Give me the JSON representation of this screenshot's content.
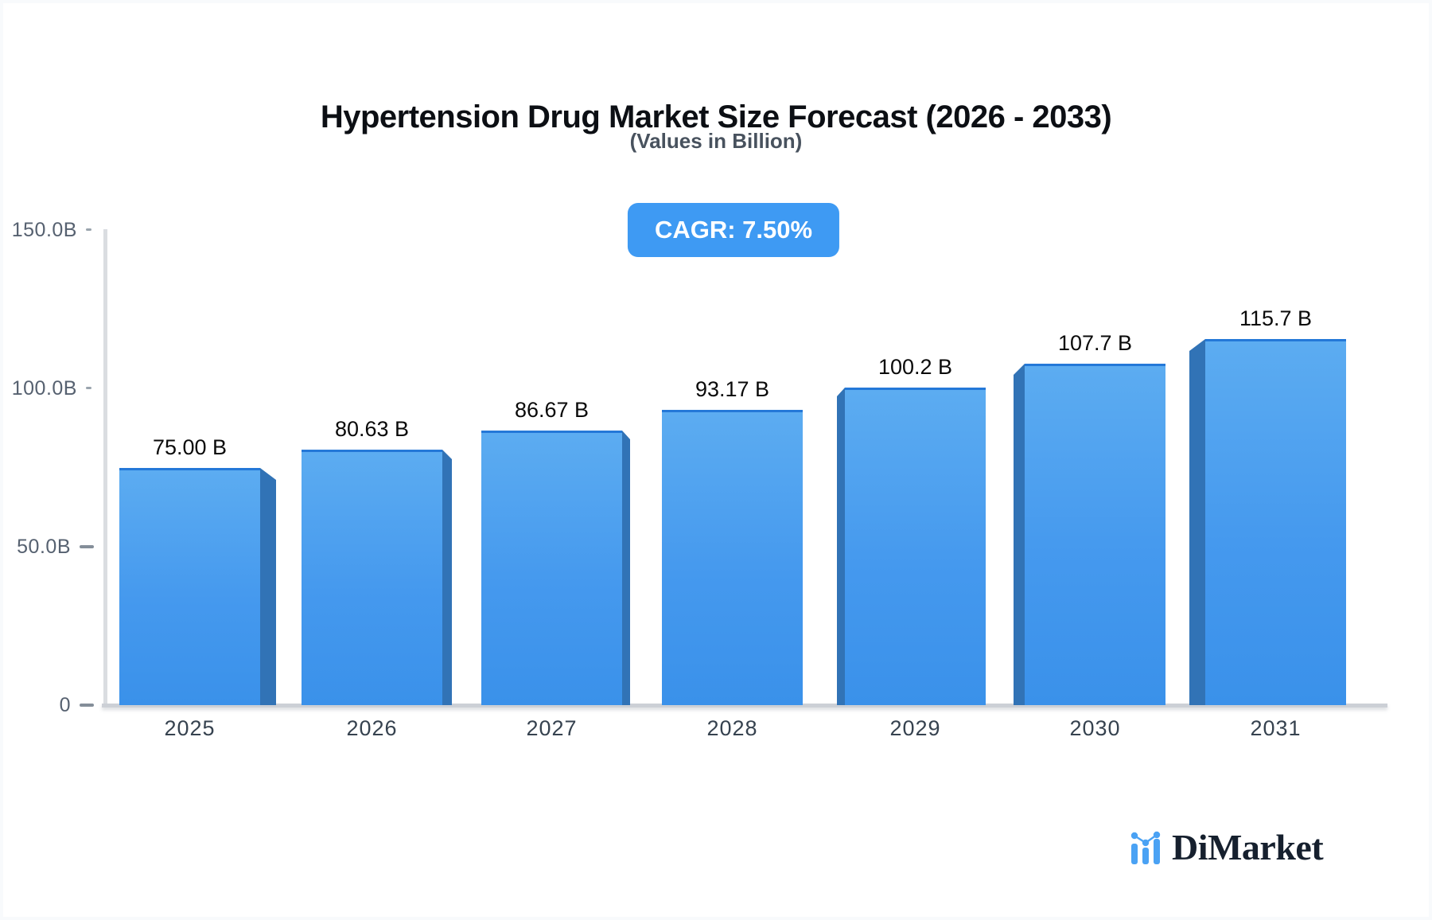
{
  "title": "Hypertension Drug Market Size Forecast (2026 - 2033)",
  "subtitle": "(Values in Billion)",
  "cagr_badge": "CAGR: 7.50%",
  "brand": {
    "name": "DiMarket"
  },
  "colors": {
    "bar_face": "#4599ee",
    "bar_face_top_edge": "#2478d8",
    "bar_side": "#3173b6",
    "badge_bg": "#3e9af3",
    "logo_blue": "#4aa2f4",
    "logo_navy": "#16202e"
  },
  "chart_data": {
    "type": "bar",
    "title": "Hypertension Drug Market Size Forecast (2026 - 2033)",
    "subtitle": "(Values in Billion)",
    "cagr_percent": "7.50%",
    "categories": [
      "2025",
      "2026",
      "2027",
      "2028",
      "2029",
      "2030",
      "2031"
    ],
    "values": [
      75.0,
      80.63,
      86.67,
      93.17,
      100.2,
      107.7,
      115.7
    ],
    "value_labels": [
      "75.00 B",
      "80.63 B",
      "86.67 B",
      "93.17 B",
      "100.2 B",
      "107.7 B",
      "115.7 B"
    ],
    "xlabel": "",
    "ylabel": "",
    "ylim": [
      0,
      150
    ],
    "yticks": [
      {
        "label": "150.0B",
        "value": 150
      },
      {
        "label": "100.0B",
        "value": 100
      },
      {
        "label": "50.0B",
        "value": 50
      },
      {
        "label": "0",
        "value": 0
      }
    ],
    "grid": false,
    "legend": false,
    "style": "3d-extruded-bars, center vanishing point"
  }
}
